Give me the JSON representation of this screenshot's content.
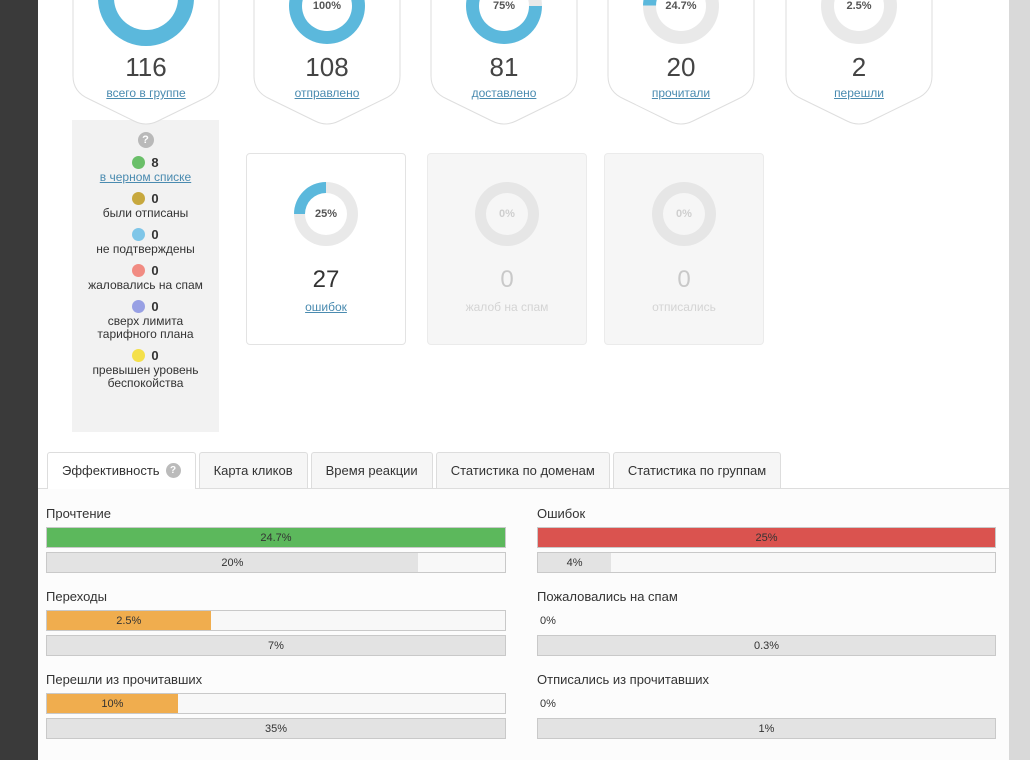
{
  "colors": {
    "donut_blue": "#5bb8dc",
    "donut_track": "#e9e9e9",
    "donut_track_disabled": "#e6e6e6",
    "bar_green": "#5cb85c",
    "bar_orange": "#f0ad4e",
    "bar_red": "#da534f",
    "bar_avg_fill": "#e3e3e3",
    "link": "#4a8bb0"
  },
  "summary_cards": [
    {
      "value": "116",
      "label": "всего в группе",
      "pct": 100,
      "percent_label": ""
    },
    {
      "value": "108",
      "label": "отправлено",
      "pct": 100,
      "percent_label": "100%"
    },
    {
      "value": "81",
      "label": "доставлено",
      "pct": 75,
      "percent_label": "75%"
    },
    {
      "value": "20",
      "label": "прочитали",
      "pct": 24.7,
      "percent_label": "24.7%"
    },
    {
      "value": "2",
      "label": "перешли",
      "pct": 2.5,
      "percent_label": "2.5%"
    }
  ],
  "blacklist_panel": {
    "help": "?",
    "items": [
      {
        "dot": "#6abf69",
        "value": "8",
        "label": "в черном списке",
        "link": true
      },
      {
        "dot": "#c7a83e",
        "value": "0",
        "label": "были отписаны",
        "link": false
      },
      {
        "dot": "#7fc6e8",
        "value": "0",
        "label": "не подтверждены",
        "link": false
      },
      {
        "dot": "#f18b82",
        "value": "0",
        "label": "жаловались на спам",
        "link": false
      },
      {
        "dot": "#98a0e4",
        "value": "0",
        "label": "сверх лимита тарифного плана",
        "link": false
      },
      {
        "dot": "#f4e04a",
        "value": "0",
        "label": "превышен уровень беспокойства",
        "link": false
      }
    ]
  },
  "stat_cards": [
    {
      "value": "27",
      "label": "ошибок",
      "pct": 25,
      "percent_label": "25%",
      "disabled": false
    },
    {
      "value": "0",
      "label": "жалоб на спам",
      "pct": 0,
      "percent_label": "0%",
      "disabled": true
    },
    {
      "value": "0",
      "label": "отписались",
      "pct": 0,
      "percent_label": "0%",
      "disabled": true
    }
  ],
  "tabs": [
    {
      "label": "Эффективность",
      "active": true,
      "help": "?"
    },
    {
      "label": "Карта кликов",
      "active": false
    },
    {
      "label": "Время реакции",
      "active": false
    },
    {
      "label": "Статистика по доменам",
      "active": false
    },
    {
      "label": "Статистика по группам",
      "active": false
    }
  ],
  "metrics": {
    "left": [
      {
        "title": "Прочтение",
        "value": 24.7,
        "value_label": "24.7%",
        "avg": 20,
        "avg_label": "20%",
        "color": "green"
      },
      {
        "title": "Переходы",
        "value": 2.5,
        "value_label": "2.5%",
        "avg": 7,
        "avg_label": "7%",
        "color": "orange"
      },
      {
        "title": "Перешли из прочитавших",
        "value": 10,
        "value_label": "10%",
        "avg": 35,
        "avg_label": "35%",
        "color": "orange"
      }
    ],
    "right": [
      {
        "title": "Ошибок",
        "value": 25,
        "value_label": "25%",
        "avg": 4,
        "avg_label": "4%",
        "color": "red"
      },
      {
        "title": "Пожаловались на спам",
        "value": 0,
        "value_label": "0%",
        "avg": 0.3,
        "avg_label": "0.3%",
        "color": "orange"
      },
      {
        "title": "Отписались из прочитавших",
        "value": 0,
        "value_label": "0%",
        "avg": 1,
        "avg_label": "1%",
        "color": "orange"
      }
    ]
  }
}
